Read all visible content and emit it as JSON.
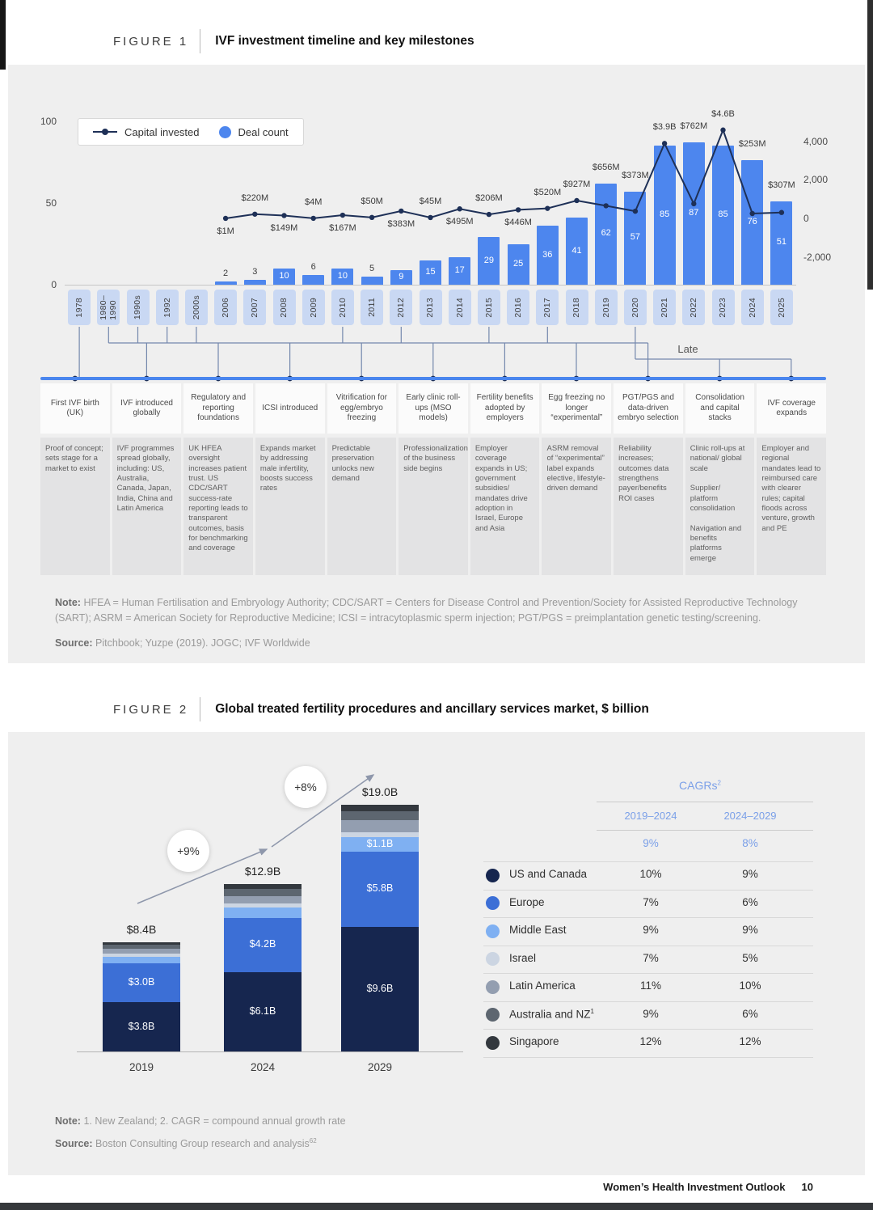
{
  "page": {
    "figure1_label": "FIGURE 1",
    "figure1_title": "IVF investment timeline and key milestones",
    "figure2_label": "FIGURE 2",
    "figure2_title": "Global treated fertility procedures and ancillary services market, $ billion",
    "footer_title": "Women’s Health Investment Outlook",
    "footer_page": "10"
  },
  "figure1": {
    "legend": {
      "capital_label": "Capital invested",
      "deal_label": "Deal count"
    },
    "left_axis": [
      "100",
      "50",
      "0"
    ],
    "right_axis": [
      "4,000",
      "2,000",
      "0",
      "-2,000"
    ],
    "late_label": "Late",
    "note_label": "Note:",
    "note_text": "HFEA = Human Fertilisation and Embryology Authority; CDC/SART = Centers for Disease Control and Prevention/Society for Assisted Reproductive Technology (SART); ASRM = American Society for Reproductive Medicine; ICSI = intracytoplasmic sperm injection; PGT/PGS = preimplantation genetic testing/screening.",
    "source_label": "Source:",
    "source_text": "Pitchbook; Yuzpe (2019). JOGC; IVF Worldwide",
    "milestones": [
      {
        "title": "First IVF birth (UK)",
        "description": "Proof of concept; sets stage for a market to exist"
      },
      {
        "title": "IVF introduced globally",
        "description": "IVF programmes spread globally, including: US, Australia, Canada, Japan, India, China and Latin America"
      },
      {
        "title": "Regulatory and reporting foundations",
        "description": "UK HFEA oversight increases patient trust. US CDC/SART success-rate reporting leads to transparent outcomes, basis for benchmarking and coverage"
      },
      {
        "title": "ICSI introduced",
        "description": "Expands market by addressing male infertility, boosts success rates"
      },
      {
        "title": "Vitrification for egg/embryo freezing",
        "description": "Predictable preservation unlocks new demand"
      },
      {
        "title": "Early clinic roll-ups (MSO models)",
        "description": "Professionalization of the business side begins"
      },
      {
        "title": "Fertility benefits adopted by employers",
        "description": "Employer coverage expands in US; government subsidies/ mandates drive adoption in Israel, Europe and Asia"
      },
      {
        "title": "Egg freezing no longer “experimental”",
        "description": "ASRM removal of “experimental” label expands elective, lifestyle-driven demand"
      },
      {
        "title": "PGT/PGS and data-driven embryo selection",
        "description": "Reliability increases; outcomes data strengthens payer/benefits ROI cases"
      },
      {
        "title": "Consolidation and capital stacks",
        "description": "Clinic roll-ups at national/ global scale\n\nSupplier/ platform consolidation\n\nNavigation and benefits platforms emerge"
      },
      {
        "title": "IVF coverage expands",
        "description": "Employer and regional mandates lead to reimbursed care with clearer rules; capital floods across venture, growth and PE"
      }
    ]
  },
  "figure2": {
    "cagr_header": "CAGRs",
    "cagr_header_sup": "2",
    "cagr_columns": [
      "2019–2024",
      "2024–2029"
    ],
    "cagr_summary": [
      "9%",
      "8%"
    ],
    "cagr_rows": [
      {
        "region": "US and Canada",
        "color": "#16264f",
        "v1": "10%",
        "v2": "9%"
      },
      {
        "region": "Europe",
        "color": "#3c6fd6",
        "v1": "7%",
        "v2": "6%"
      },
      {
        "region": "Middle East",
        "color": "#7fb0f2",
        "v1": "9%",
        "v2": "9%"
      },
      {
        "region": "Israel",
        "color": "#ccd5e2",
        "v1": "7%",
        "v2": "5%"
      },
      {
        "region": "Latin America",
        "color": "#939eb0",
        "v1": "11%",
        "v2": "10%"
      },
      {
        "region": "Australia and NZ",
        "region_sup": "1",
        "color": "#5d6670",
        "v1": "9%",
        "v2": "6%"
      },
      {
        "region": "Singapore",
        "color": "#33383e",
        "v1": "12%",
        "v2": "12%"
      }
    ],
    "note_label": "Note:",
    "note_text": "1. New Zealand; 2. CAGR = compound annual growth rate",
    "source_label": "Source:",
    "source_text": "Boston Consulting Group research and analysis",
    "source_sup": "62"
  },
  "chart_data": [
    {
      "type": "bar",
      "subtype": "bar+line-combo",
      "title": "IVF investment timeline and key milestones",
      "categories": [
        "1978",
        "1980–\n1990",
        "1990s",
        "1992",
        "2000s",
        "2006",
        "2007",
        "2008",
        "2009",
        "2010",
        "2011",
        "2012",
        "2013",
        "2014",
        "2015",
        "2016",
        "2017",
        "2018",
        "2019",
        "2020",
        "2021",
        "2022",
        "2023",
        "2024",
        "2025"
      ],
      "left_axis": {
        "ticks": [
          0,
          50,
          100
        ]
      },
      "right_axis": {
        "ticks": [
          -2000,
          0,
          2000,
          4000
        ]
      },
      "legend_position": "top-left",
      "grid": false,
      "series": [
        {
          "name": "Deal count",
          "type": "bar",
          "axis": "left",
          "values": [
            null,
            null,
            null,
            null,
            null,
            2,
            3,
            10,
            6,
            10,
            5,
            9,
            15,
            17,
            29,
            25,
            36,
            41,
            62,
            57,
            85,
            87,
            85,
            76,
            51
          ]
        },
        {
          "name": "Capital invested",
          "type": "line",
          "axis": "right",
          "values_musd": [
            null,
            null,
            null,
            null,
            null,
            1,
            220,
            149,
            4,
            167,
            50,
            383,
            45,
            495,
            206,
            446,
            520,
            927,
            656,
            373,
            3900,
            762,
            4600,
            253,
            307
          ],
          "value_labels": [
            null,
            null,
            null,
            null,
            null,
            "$1M",
            "$220M",
            "$149M",
            "$4M",
            "$167M",
            "$50M",
            "$383M",
            "$45M",
            "$495M",
            "$206M",
            "$446M",
            "$520M",
            "$927M",
            "$656M",
            "$373M",
            "$3.9B",
            "$762M",
            "$4.6B",
            "$253M",
            "$307M"
          ],
          "label_positions": [
            null,
            null,
            null,
            null,
            null,
            "below",
            "above",
            "below",
            "above",
            "below",
            "above",
            "below",
            "above",
            "below",
            "above",
            "below",
            "above",
            "above",
            "above",
            "above",
            "above",
            "above",
            "above",
            "above",
            "above"
          ]
        }
      ]
    },
    {
      "type": "bar",
      "subtype": "stacked-bar",
      "title": "Global treated fertility procedures and ancillary services market, $ billion",
      "categories": [
        "2019",
        "2024",
        "2029"
      ],
      "totals": [
        8.4,
        12.9,
        19.0
      ],
      "total_labels": [
        "$8.4B",
        "$12.9B",
        "$19.0B"
      ],
      "growth_labels": [
        "+9%",
        "+8%"
      ],
      "grid": false,
      "series": [
        {
          "name": "US and Canada",
          "color": "#16264f",
          "values": [
            3.8,
            6.1,
            9.6
          ],
          "labels": [
            "$3.8B",
            "$6.1B",
            "$9.6B"
          ]
        },
        {
          "name": "Europe",
          "color": "#3c6fd6",
          "values": [
            3.0,
            4.2,
            5.8
          ],
          "labels": [
            "$3.0B",
            "$4.2B",
            "$5.8B"
          ]
        },
        {
          "name": "Middle East",
          "color": "#7fb0f2",
          "values": [
            0.5,
            0.8,
            1.1
          ],
          "labels": [
            null,
            null,
            "$1.1B"
          ]
        },
        {
          "name": "Israel",
          "color": "#ccd5e2",
          "values": [
            0.25,
            0.3,
            0.4
          ],
          "labels": [
            null,
            null,
            null
          ]
        },
        {
          "name": "Latin America",
          "color": "#939eb0",
          "values": [
            0.35,
            0.55,
            0.9
          ],
          "labels": [
            null,
            null,
            null
          ]
        },
        {
          "name": "Australia and NZ",
          "color": "#5d6670",
          "values": [
            0.3,
            0.55,
            0.7
          ],
          "labels": [
            null,
            null,
            null
          ]
        },
        {
          "name": "Singapore",
          "color": "#33383e",
          "values": [
            0.2,
            0.4,
            0.5
          ],
          "labels": [
            null,
            null,
            null
          ]
        }
      ]
    }
  ]
}
